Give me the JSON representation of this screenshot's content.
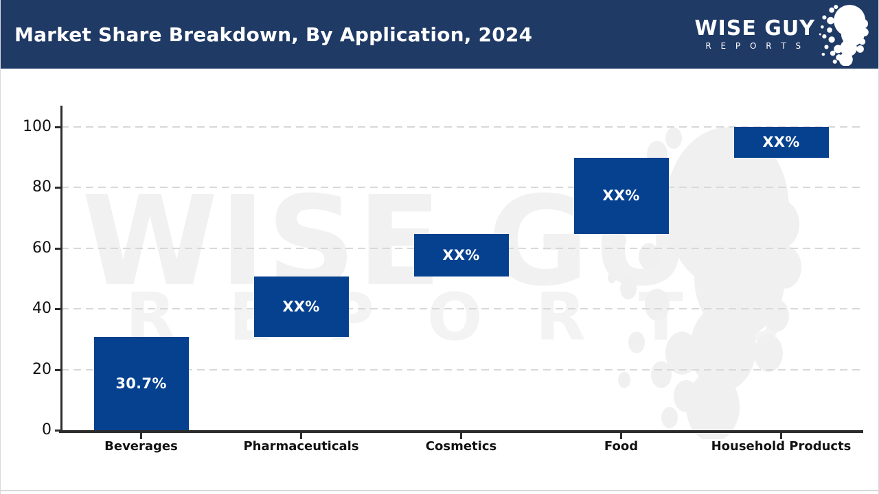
{
  "header": {
    "title": "Market Share Breakdown, By Application, 2024",
    "logo": {
      "wordmark": "WISE GUY",
      "tagline": "R E P O R T S"
    }
  },
  "watermark": {
    "line1": "WISE GUY",
    "line2": "R E P O R T S"
  },
  "chart_data": {
    "type": "bar",
    "subtype": "waterfall-floating-bars",
    "title": "Market Share Breakdown, By Application, 2024",
    "categories": [
      "Beverages",
      "Pharmaceuticals",
      "Cosmetics",
      "Food",
      "Household Products"
    ],
    "segments": [
      {
        "category": "Beverages",
        "start": 0,
        "end": 30.7,
        "label": "30.7%"
      },
      {
        "category": "Pharmaceuticals",
        "start": 30.7,
        "end": 50.7,
        "label": "XX%"
      },
      {
        "category": "Cosmetics",
        "start": 50.7,
        "end": 64.7,
        "label": "XX%"
      },
      {
        "category": "Food",
        "start": 64.7,
        "end": 89.7,
        "label": "XX%"
      },
      {
        "category": "Household Products",
        "start": 89.7,
        "end": 100,
        "label": "XX%"
      }
    ],
    "yticks": [
      0,
      20,
      40,
      60,
      80,
      100
    ],
    "ylim": [
      0,
      107
    ],
    "xlabel": "",
    "ylabel": "",
    "legend": "none",
    "grid": "horizontal-dashed",
    "colors": {
      "bar": "#05418f",
      "bar_label": "#ffffff",
      "grid": "#d8d8d8",
      "axis": "#2b2b2b",
      "tick_label": "#111111",
      "header_bg": "#203a66",
      "watermark": "#f1f1f1"
    }
  }
}
